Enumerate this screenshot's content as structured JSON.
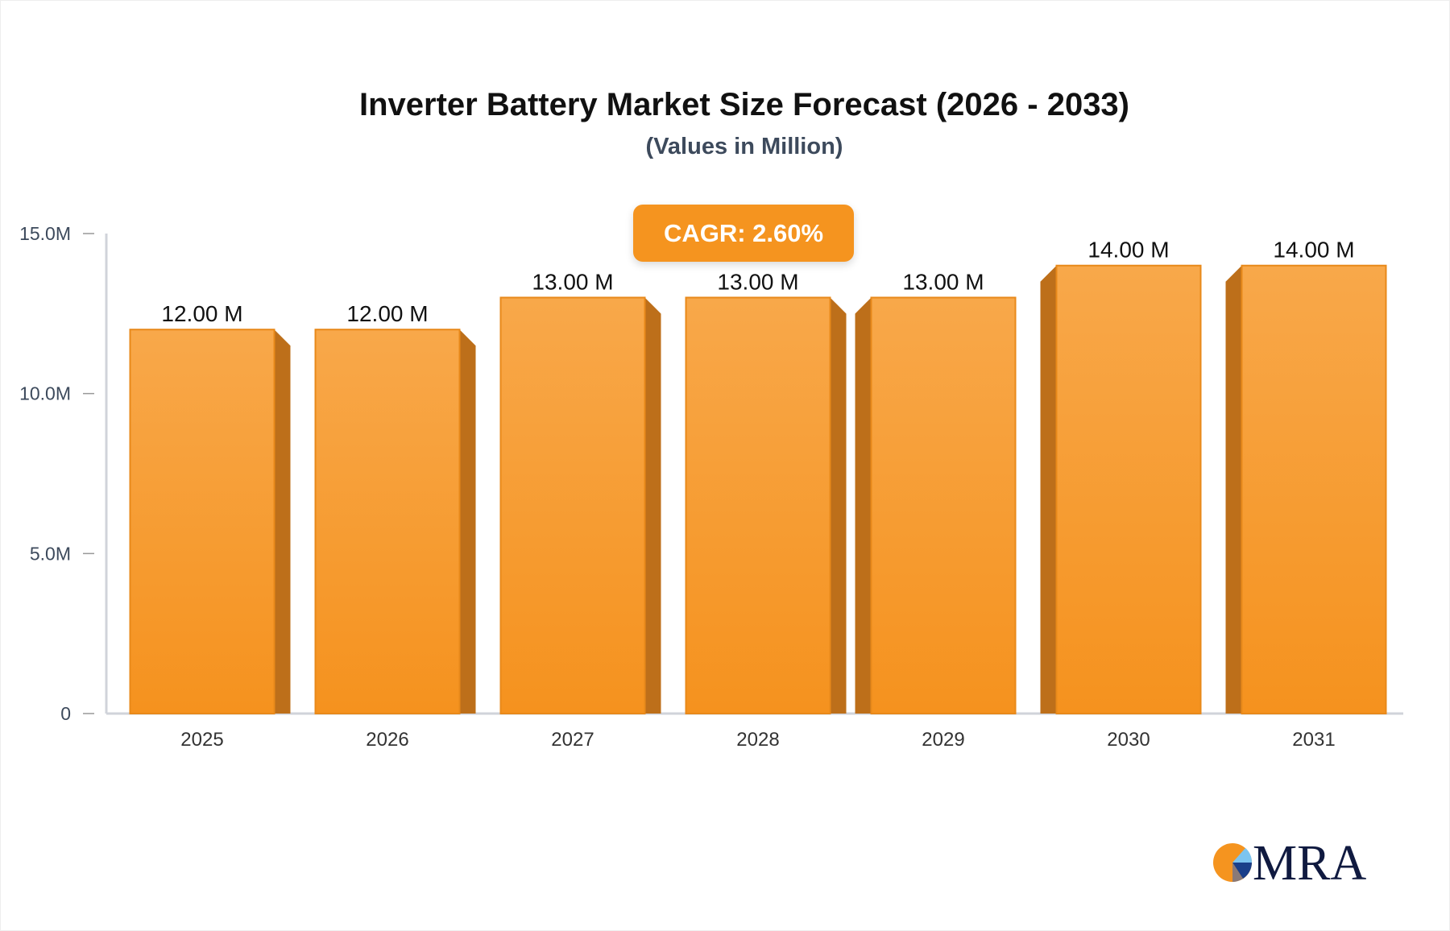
{
  "chart_data": {
    "type": "bar",
    "title": "Inverter Battery Market Size Forecast (2026 - 2033)",
    "subtitle": "(Values in Million)",
    "categories": [
      "2025",
      "2026",
      "2027",
      "2028",
      "2029",
      "2030",
      "2031"
    ],
    "values": [
      12,
      12,
      13,
      13,
      13,
      14,
      14
    ],
    "data_labels": [
      "12.00 M",
      "12.00 M",
      "13.00 M",
      "13.00 M",
      "13.00 M",
      "14.00 M",
      "14.00 M"
    ],
    "unit": "M",
    "ylim": [
      0,
      15
    ],
    "yticks": [
      0,
      5,
      10,
      15
    ],
    "ytick_labels": [
      "0",
      "5.0M",
      "10.0M",
      "15.0M"
    ],
    "annotation": "CAGR: 2.60%",
    "grid": false,
    "colors": {
      "bar_top": "#f8a84a",
      "bar_bottom": "#f5921e",
      "bar_side": "#bd6f1a",
      "badge": "#f5941f"
    }
  },
  "logo_text": "MRA"
}
